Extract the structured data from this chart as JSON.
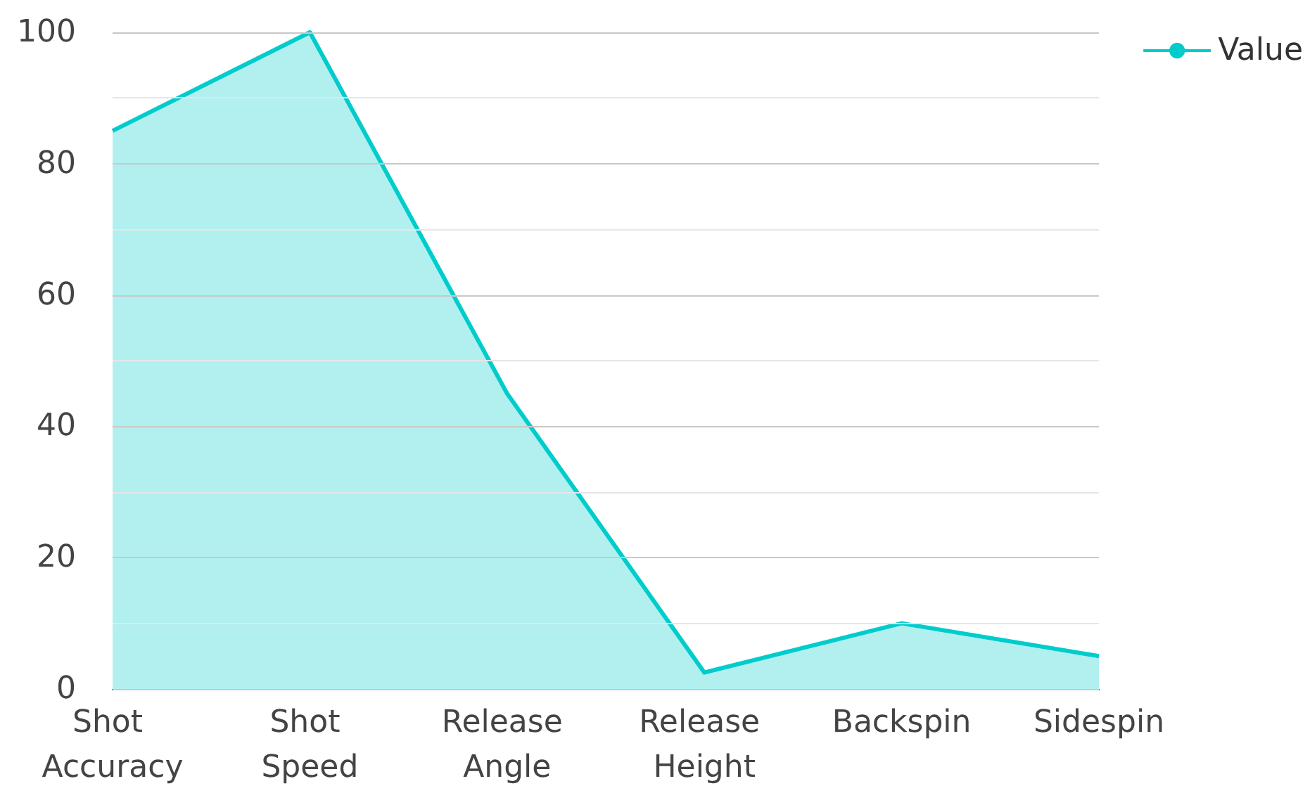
{
  "chart_data": {
    "type": "area",
    "categories": [
      "Shot Accuracy",
      "Shot Speed",
      "Release Angle",
      "Release Height",
      "Backspin",
      "Sidespin"
    ],
    "series": [
      {
        "name": "Value",
        "color": "#00cccc",
        "values": [
          85,
          100,
          45,
          2.5,
          10,
          5
        ]
      }
    ],
    "ylim": [
      0,
      100
    ],
    "yticks": [
      0,
      {
        "value": 10,
        "label": null
      },
      20,
      {
        "value": 30,
        "label": null
      },
      40,
      {
        "value": 50,
        "label": null
      },
      60,
      {
        "value": 70,
        "label": null
      },
      80,
      {
        "value": 90,
        "label": null
      },
      100
    ],
    "grid": "y",
    "legend": "top right",
    "marker": "none",
    "line_style": "solid"
  }
}
